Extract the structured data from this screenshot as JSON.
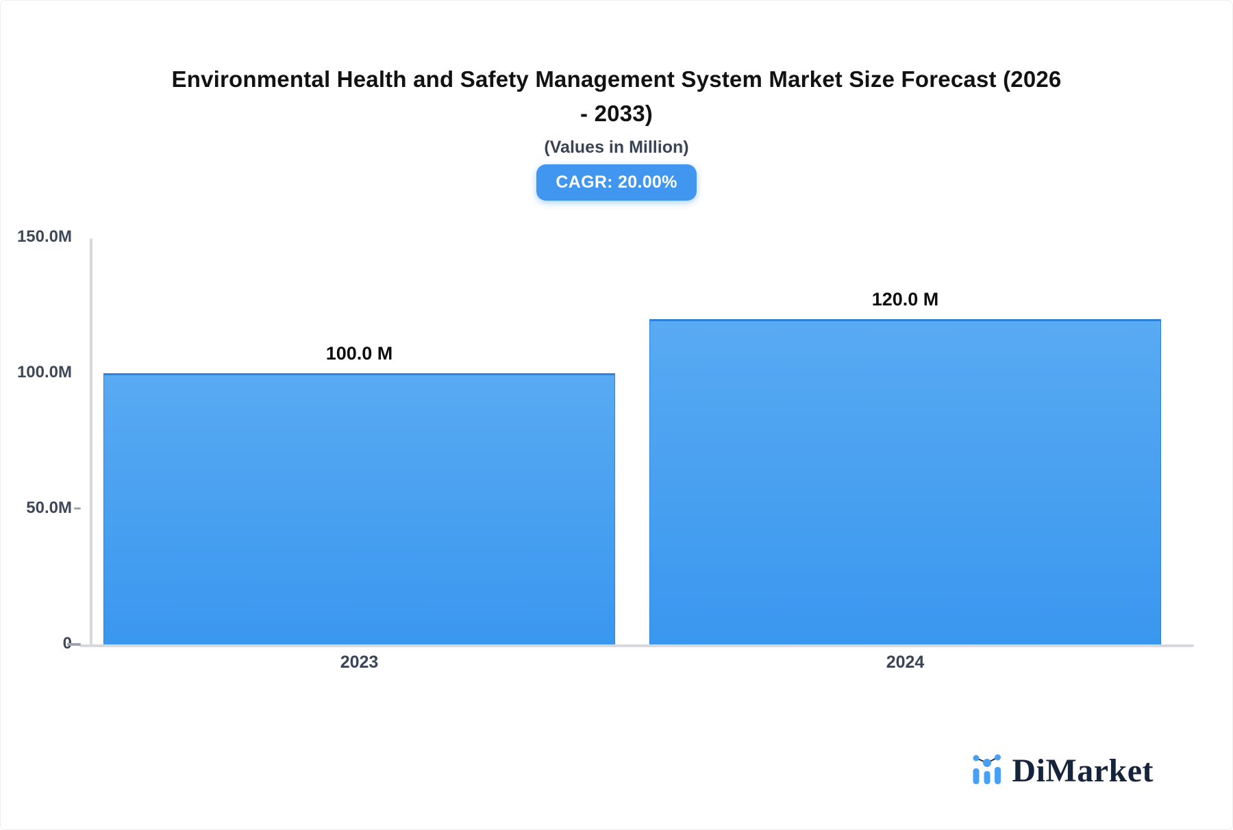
{
  "header": {
    "title_lines": [
      "Environmental Health and Safety Management System Market Size Forecast (2026",
      "- 2033)"
    ],
    "subtitle": "(Values in Million)",
    "cagr_label": "CAGR: 20.00%"
  },
  "chart_data": {
    "type": "bar",
    "title": "Environmental Health and Safety Management System Market Size Forecast (2026 - 2033)",
    "subtitle": "(Values in Million)",
    "cagr_percent": 20.0,
    "categories": [
      "2023",
      "2024"
    ],
    "values": [
      100.0,
      120.0
    ],
    "value_labels": [
      "100.0 M",
      "120.0 M"
    ],
    "unit": "Million",
    "ylim": [
      0,
      150
    ],
    "y_ticks": [
      {
        "value": 0,
        "label": "0",
        "dash": true
      },
      {
        "value": 50,
        "label": "50.0M",
        "dash": true
      },
      {
        "value": 100,
        "label": "100.0M",
        "dash": false
      },
      {
        "value": 150,
        "label": "150.0M",
        "dash": false
      }
    ],
    "grid": false,
    "legend": false
  },
  "theme": {
    "badge_bg": "#4196F0",
    "bar_gradient_top": "#58AAF2",
    "bar_gradient_bottom": "#3A97EF",
    "bar_border": "#2E81D9",
    "axis_color": "#D7D8DD",
    "brand_blue": "#47A0F5",
    "brand_navy": "#16233C"
  },
  "footer": {
    "brand_name": "DiMarket",
    "logo_icon": "mini-bar-line-chart-icon"
  }
}
